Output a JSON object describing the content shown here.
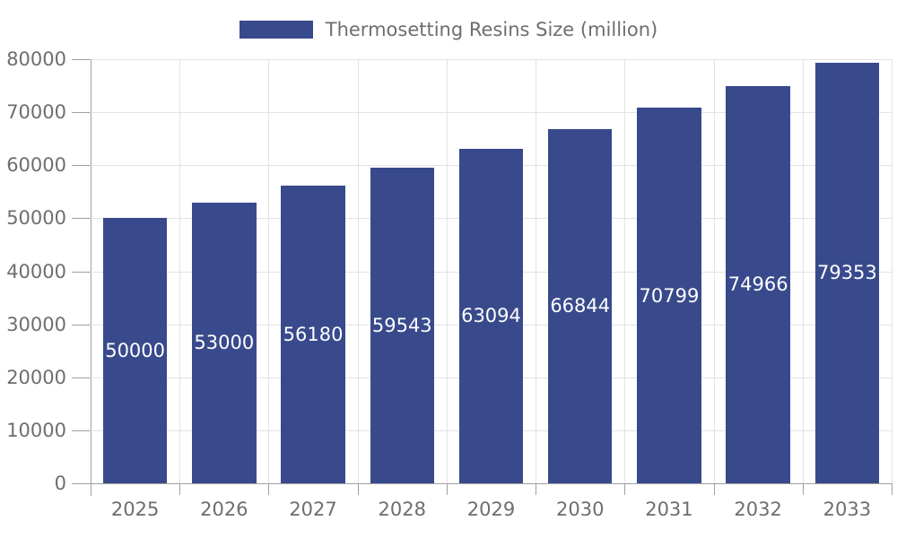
{
  "chart_data": {
    "type": "bar",
    "series_name": "Thermosetting Resins Size (million)",
    "title": "Thermosetting Resins Size (million)",
    "categories": [
      "2025",
      "2026",
      "2027",
      "2028",
      "2029",
      "2030",
      "2031",
      "2032",
      "2033"
    ],
    "values": [
      50000,
      53000,
      56180,
      59543,
      63094,
      66844,
      70799,
      74966,
      79353
    ],
    "xlabel": "",
    "ylabel": "",
    "ylim": [
      0,
      80000
    ],
    "ytick_step": 10000,
    "yticks": [
      0,
      10000,
      20000,
      30000,
      40000,
      50000,
      60000,
      70000,
      80000
    ],
    "grid": true,
    "legend_position": "top-center",
    "bar_label_position": "inside-center",
    "colors": {
      "bar": "#384A8C",
      "grid": "#E3E3E3",
      "axis": "#A0A0A0",
      "tick_text": "#6E6E6E",
      "bar_label_text": "#FFFFFF",
      "background": "#FFFFFF"
    }
  }
}
